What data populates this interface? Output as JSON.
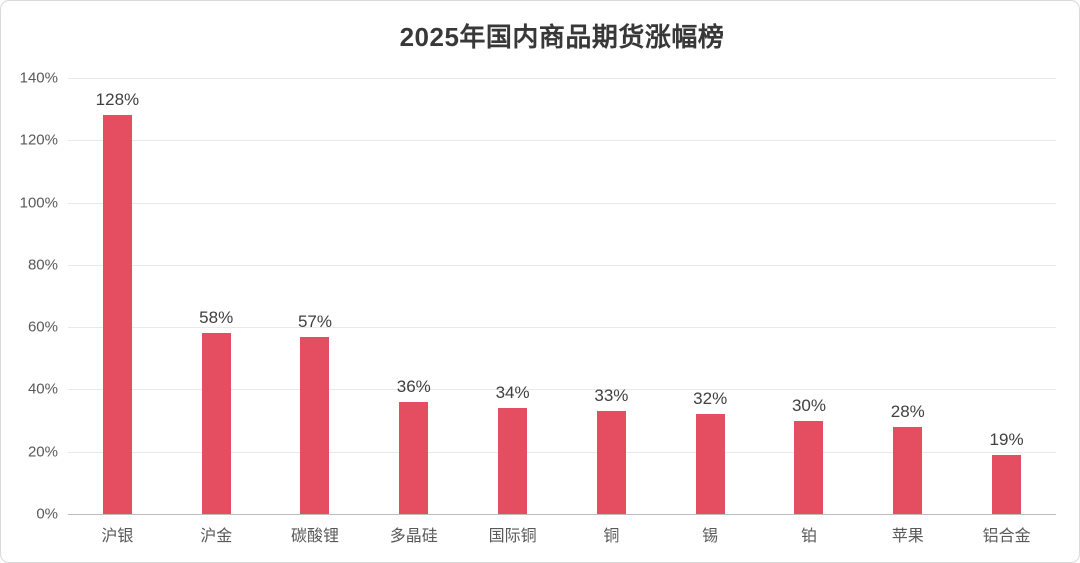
{
  "window": {
    "background": "#ffffff",
    "frame_border_color": "#d9d9d9"
  },
  "chart_data": {
    "type": "bar",
    "title": "2025年国内商品期货涨幅榜",
    "xlabel": "",
    "ylabel": "",
    "categories": [
      "沪银",
      "沪金",
      "碳酸锂",
      "多晶硅",
      "国际铜",
      "铜",
      "锡",
      "铂",
      "苹果",
      "铝合金"
    ],
    "values": [
      128,
      58,
      57,
      36,
      34,
      33,
      32,
      30,
      28,
      19
    ],
    "value_labels": [
      "128%",
      "58%",
      "57%",
      "36%",
      "34%",
      "33%",
      "32%",
      "30%",
      "28%",
      "19%"
    ],
    "ylim": [
      0,
      140
    ],
    "yticks": [
      {
        "v": 0,
        "label": "0%"
      },
      {
        "v": 20,
        "label": "20%"
      },
      {
        "v": 40,
        "label": "40%"
      },
      {
        "v": 60,
        "label": "60%"
      },
      {
        "v": 80,
        "label": "80%"
      },
      {
        "v": 100,
        "label": "100%"
      },
      {
        "v": 120,
        "label": "120%"
      },
      {
        "v": 140,
        "label": "140%"
      }
    ],
    "grid": true,
    "legend_position": "none",
    "colors": {
      "bar": "#e54d60",
      "title_text": "#383838",
      "axis_tick_text": "#595959",
      "data_label_text": "#404040",
      "gridline": "#e9e9e9",
      "baseline": "#bcbcbc"
    }
  }
}
